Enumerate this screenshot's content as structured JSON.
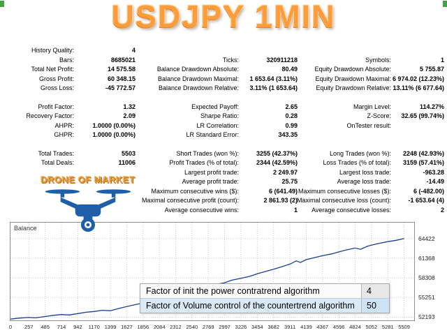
{
  "title": "USDJPY 1MIN",
  "colors": {
    "title_orange": "#fb9d3c",
    "drone_blue": "#1e5fa8",
    "line_blue": "#1b3f8f",
    "param_highlight": "#d9e9f5"
  },
  "logo": {
    "text": "DRONE OF MARKET"
  },
  "stats": {
    "rows": [
      {
        "gap": false,
        "cells": [
          "History Quality:",
          "4",
          "",
          "",
          "",
          ""
        ]
      },
      {
        "gap": false,
        "cells": [
          "Bars:",
          "8685021",
          "Ticks:",
          "320911218",
          "Symbols:",
          "1"
        ]
      },
      {
        "gap": false,
        "cells": [
          "Total Net Profit:",
          "14 575.58",
          "Balance Drawdown Absolute:",
          "80.49",
          "Equity Drawdown Absolute:",
          "5 755.87"
        ]
      },
      {
        "gap": false,
        "cells": [
          "Gross Profit:",
          "60 348.15",
          "Balance Drawdown Maximal:",
          "1 653.64 (3.11%)",
          "Equity Drawdown Maximal:",
          "6 974.02 (12.23%)"
        ]
      },
      {
        "gap": false,
        "cells": [
          "Gross Loss:",
          "-45 772.57",
          "Balance Drawdown Relative:",
          "3.11% (1 653.64)",
          "Equity Drawdown Relative:",
          "13.11% (6 677.64)"
        ]
      },
      {
        "gap": true,
        "cells": [
          "Profit Factor:",
          "1.32",
          "Expected Payoff:",
          "2.65",
          "Margin Level:",
          "114.27%"
        ]
      },
      {
        "gap": false,
        "cells": [
          "Recovery Factor:",
          "2.09",
          "Sharpe Ratio:",
          "0.28",
          "Z-Score:",
          "32.65 (99.74%)"
        ]
      },
      {
        "gap": false,
        "cells": [
          "AHPR:",
          "1.0000 (0.00%)",
          "LR Correlation:",
          "0.99",
          "OnTester result:",
          ""
        ]
      },
      {
        "gap": false,
        "cells": [
          "GHPR:",
          "1.0000 (0.00%)",
          "LR Standard Error:",
          "343.35",
          "",
          ""
        ]
      },
      {
        "gap": true,
        "cells": [
          "Total Trades:",
          "5503",
          "Short Trades (won %):",
          "3255 (42.37%)",
          "Long Trades (won %):",
          "2248 (42.93%)"
        ]
      },
      {
        "gap": false,
        "cells": [
          "Total Deals:",
          "11006",
          "Profit Trades (% of total):",
          "2344 (42.59%)",
          "Loss Trades (% of total):",
          "3159 (57.41%)"
        ]
      },
      {
        "gap": false,
        "cells": [
          "",
          "",
          "Largest profit trade:",
          "2 249.97",
          "Largest loss trade:",
          "-963.28"
        ]
      },
      {
        "gap": false,
        "cells": [
          "",
          "",
          "Average profit trade:",
          "25.75",
          "Average loss trade:",
          "-14.49"
        ]
      },
      {
        "gap": false,
        "cells": [
          "",
          "",
          "Maximum consecutive wins ($):",
          "6 (641.49)",
          "Maximum consecutive losses ($):",
          "6 (-482.00)"
        ]
      },
      {
        "gap": false,
        "cells": [
          "",
          "",
          "Maximal consecutive profit (count):",
          "2 861.93 (2)",
          "Maximal consecutive loss (count):",
          "-1 653.64 (4)"
        ]
      },
      {
        "gap": false,
        "cells": [
          "",
          "",
          "Average consecutive wins:",
          "1",
          "Average consecutive losses:",
          "2"
        ]
      }
    ]
  },
  "params_box": {
    "rows": [
      {
        "label": "Factor of init the power contratrend algorithm",
        "value": "4"
      },
      {
        "label": "Factor of Volume control of the countertrend algorithm",
        "value": "50"
      }
    ]
  },
  "chart_data": {
    "type": "line",
    "title": "Balance",
    "xlabel": "",
    "ylabel": "",
    "grid": true,
    "legend_position": "none",
    "line_color": "#1b3f8f",
    "xlim": [
      0,
      5650
    ],
    "ylim": [
      51700,
      66900
    ],
    "x_ticks": [
      0,
      257,
      485,
      714,
      942,
      1170,
      1399,
      1627,
      1856,
      2084,
      2312,
      2540,
      2769,
      2997,
      3226,
      3454,
      3682,
      3911,
      4139,
      4367,
      4596,
      4824,
      5052,
      5281,
      5509
    ],
    "y_ticks": [
      52193,
      55251,
      58308,
      61368,
      64422
    ],
    "series": [
      {
        "name": "Balance",
        "points": [
          [
            0,
            51900
          ],
          [
            120,
            52050
          ],
          [
            257,
            52150
          ],
          [
            350,
            52080
          ],
          [
            485,
            52300
          ],
          [
            600,
            52480
          ],
          [
            714,
            52600
          ],
          [
            820,
            52540
          ],
          [
            942,
            52750
          ],
          [
            1050,
            52950
          ],
          [
            1170,
            53080
          ],
          [
            1280,
            53260
          ],
          [
            1399,
            53200
          ],
          [
            1500,
            53500
          ],
          [
            1627,
            53850
          ],
          [
            1750,
            54150
          ],
          [
            1856,
            54380
          ],
          [
            1950,
            54650
          ],
          [
            2050,
            55250
          ],
          [
            2084,
            55100
          ],
          [
            2180,
            55650
          ],
          [
            2250,
            55450
          ],
          [
            2312,
            55900
          ],
          [
            2360,
            55150
          ],
          [
            2420,
            56250
          ],
          [
            2540,
            56400
          ],
          [
            2650,
            56650
          ],
          [
            2769,
            57000
          ],
          [
            2900,
            57350
          ],
          [
            2997,
            57550
          ],
          [
            3100,
            57950
          ],
          [
            3226,
            58250
          ],
          [
            3350,
            58550
          ],
          [
            3454,
            58950
          ],
          [
            3550,
            59250
          ],
          [
            3682,
            59650
          ],
          [
            3800,
            60050
          ],
          [
            3911,
            60450
          ],
          [
            4000,
            60950
          ],
          [
            4060,
            60700
          ],
          [
            4139,
            61150
          ],
          [
            4250,
            61450
          ],
          [
            4367,
            61750
          ],
          [
            4500,
            62050
          ],
          [
            4596,
            62350
          ],
          [
            4700,
            62650
          ],
          [
            4824,
            62950
          ],
          [
            4900,
            62750
          ],
          [
            5000,
            63250
          ],
          [
            5052,
            63400
          ],
          [
            5150,
            63650
          ],
          [
            5281,
            63950
          ],
          [
            5400,
            64150
          ],
          [
            5509,
            64422
          ]
        ]
      }
    ]
  }
}
